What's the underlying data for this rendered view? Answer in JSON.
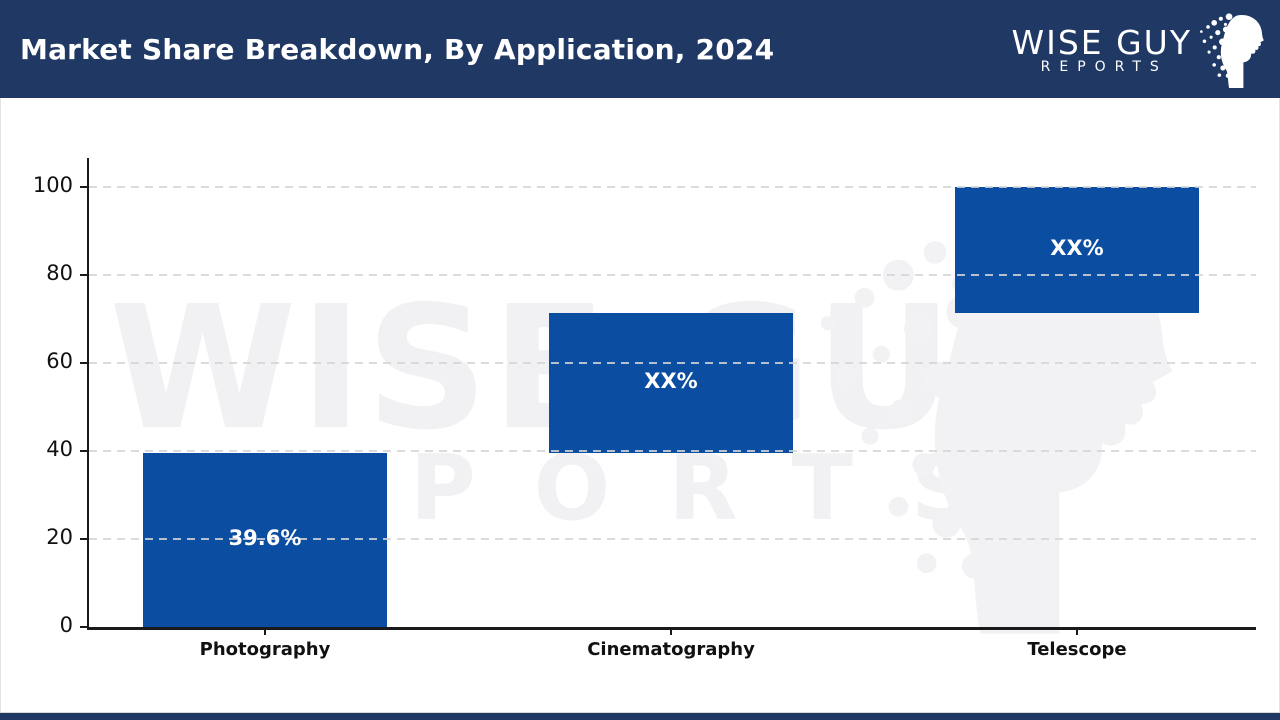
{
  "header": {
    "title": "Market Share Breakdown, By Application, 2024",
    "logo": {
      "line1": "WISE GUY",
      "line2": "REPORTS"
    }
  },
  "watermark": {
    "line1": "WISE GUY",
    "line2": "REPORTS"
  },
  "colors": {
    "header_bg": "#1f3864",
    "footer_bg": "#1f3864",
    "bar": "#0b4da1",
    "bar_label_text": "#ffffff",
    "title_text": "#ffffff",
    "grid": "#d5d5d5",
    "axis": "#1a1a1a",
    "watermark": "#f1f1f4"
  },
  "chart_data": {
    "type": "bar",
    "subtype": "stacked-waterfall",
    "title": "Market Share Breakdown, By Application, 2024",
    "categories": [
      "Photography",
      "Cinematography",
      "Telescope"
    ],
    "segments": [
      {
        "category": "Photography",
        "start": 0,
        "end": 39.6,
        "label": "39.6%"
      },
      {
        "category": "Cinematography",
        "start": 39.6,
        "end": 71.3,
        "label": "XX%"
      },
      {
        "category": "Telescope",
        "start": 71.3,
        "end": 100,
        "label": "XX%"
      }
    ],
    "y_ticks": [
      0,
      20,
      40,
      60,
      80,
      100
    ],
    "ylim": [
      0,
      100
    ],
    "xlabel": "",
    "ylabel": "",
    "grid": "horizontal-dashed",
    "legend": "none"
  }
}
